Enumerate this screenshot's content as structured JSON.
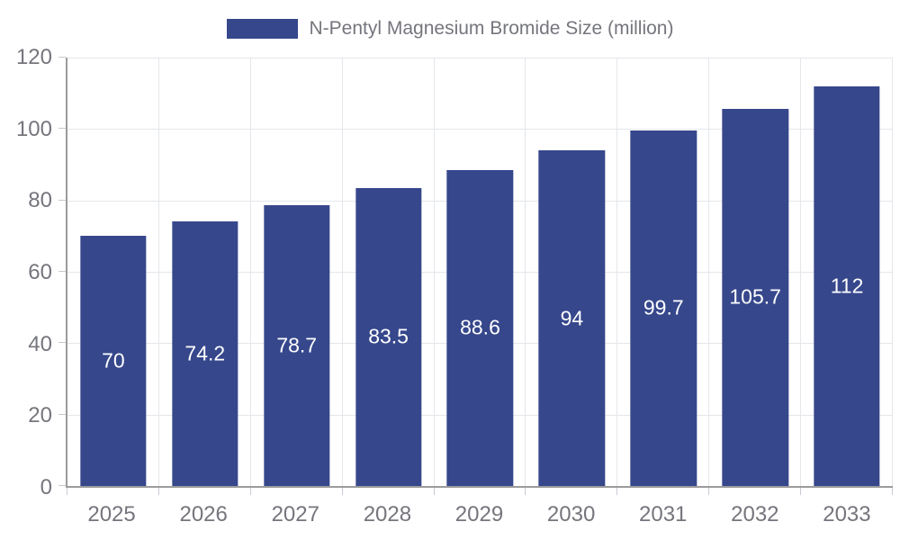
{
  "chart_data": {
    "type": "bar",
    "title": "N-Pentyl Magnesium Bromide Size (million)",
    "legend": [
      "N-Pentyl Magnesium Bromide Size (million)"
    ],
    "legend_position": "top",
    "categories": [
      "2025",
      "2026",
      "2027",
      "2028",
      "2029",
      "2030",
      "2031",
      "2032",
      "2033"
    ],
    "values": [
      70,
      74.2,
      78.7,
      83.5,
      88.6,
      94,
      99.7,
      105.7,
      112
    ],
    "xlabel": "",
    "ylabel": "",
    "ylim": [
      0,
      120
    ],
    "yticks": [
      0,
      20,
      40,
      60,
      80,
      100,
      120
    ],
    "grid": true,
    "colors": {
      "bar": "#36478C",
      "value_label": "#FFFFFF",
      "axis_line": "#9B9B9B",
      "grid_line": "#E4E6EA",
      "tick_mark": "#C7CAD1",
      "tick_label": "#75767D",
      "legend_text": "#75767D",
      "background": "#FFFFFF"
    }
  }
}
